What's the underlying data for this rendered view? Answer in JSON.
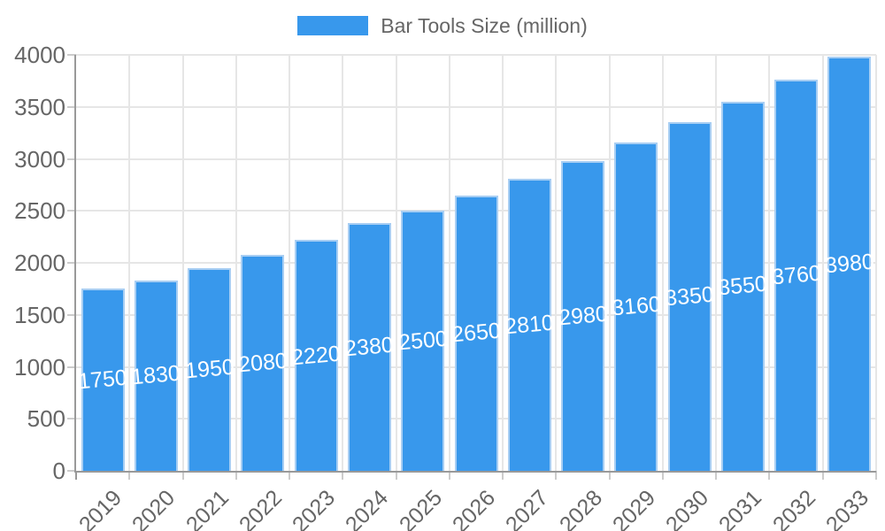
{
  "legend": {
    "items": [
      {
        "label": "Bar Tools Size (million)",
        "color": "#3898EC"
      }
    ]
  },
  "chart_data": {
    "type": "bar",
    "title": "Bar Tools Size (million)",
    "series_name": "Bar Tools Size (million)",
    "categories": [
      "2019",
      "2020",
      "2021",
      "2022",
      "2023",
      "2024",
      "2025",
      "2026",
      "2027",
      "2028",
      "2029",
      "2030",
      "2031",
      "2032",
      "2033"
    ],
    "values": [
      1750,
      1830,
      1950,
      2080,
      2220,
      2380,
      2500,
      2650,
      2810,
      2980,
      3160,
      3350,
      3550,
      3760,
      3980
    ],
    "value_labels": [
      "1750",
      "1830",
      "1950",
      "2080",
      "2220",
      "2380",
      "2500",
      "2650",
      "2810",
      "2980",
      "3160",
      "3350",
      "3550",
      "3760",
      "3980"
    ],
    "xlabel": "",
    "ylabel": "",
    "ylim": [
      0,
      4000
    ],
    "yticks": [
      0,
      500,
      1000,
      1500,
      2000,
      2500,
      3000,
      3500,
      4000
    ],
    "grid": true,
    "legend_position": "top",
    "bar_color": "#3898EC",
    "bar_border_color": "#A8CEF3",
    "value_label_color": "#FFFFFF",
    "text_color": "#666666",
    "gridline_color": "#E6E6E6",
    "axis_line_color": "#999999",
    "tick_color": "#CCCCCC"
  }
}
